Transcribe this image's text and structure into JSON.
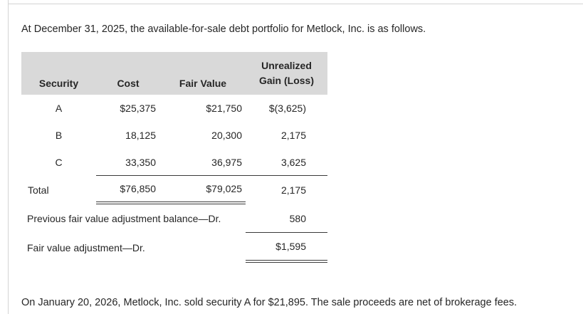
{
  "page": {
    "intro_text": "At December 31, 2025, the available-for-sale debt portfolio for Metlock, Inc. is as follows.",
    "footer_text": "On January 20, 2026, Metlock, Inc. sold security A for $21,895. The sale proceeds are net of brokerage fees."
  },
  "colors": {
    "table_header_bg": "#d9d9d9"
  },
  "table": {
    "headers": {
      "security": "Security",
      "cost": "Cost",
      "fair_value": "Fair Value",
      "gain_line1": "Unrealized",
      "gain_line2": "Gain (Loss)"
    },
    "rows": [
      {
        "security": "A",
        "cost": "$25,375",
        "fair_value": "$21,750",
        "gain": "$(3,625)"
      },
      {
        "security": "B",
        "cost": "18,125",
        "fair_value": "20,300",
        "gain": "2,175"
      },
      {
        "security": "C",
        "cost": "33,350",
        "fair_value": "36,975",
        "gain": "3,625"
      }
    ],
    "total_row": {
      "label": "Total",
      "cost": "$76,850",
      "fair_value": "$79,025",
      "gain": "2,175"
    },
    "previous_row": {
      "label": "Previous fair value adjustment balance—Dr.",
      "gain": "580"
    },
    "adjustment_row": {
      "label": "Fair value adjustment—Dr.",
      "gain": "$1,595"
    }
  }
}
